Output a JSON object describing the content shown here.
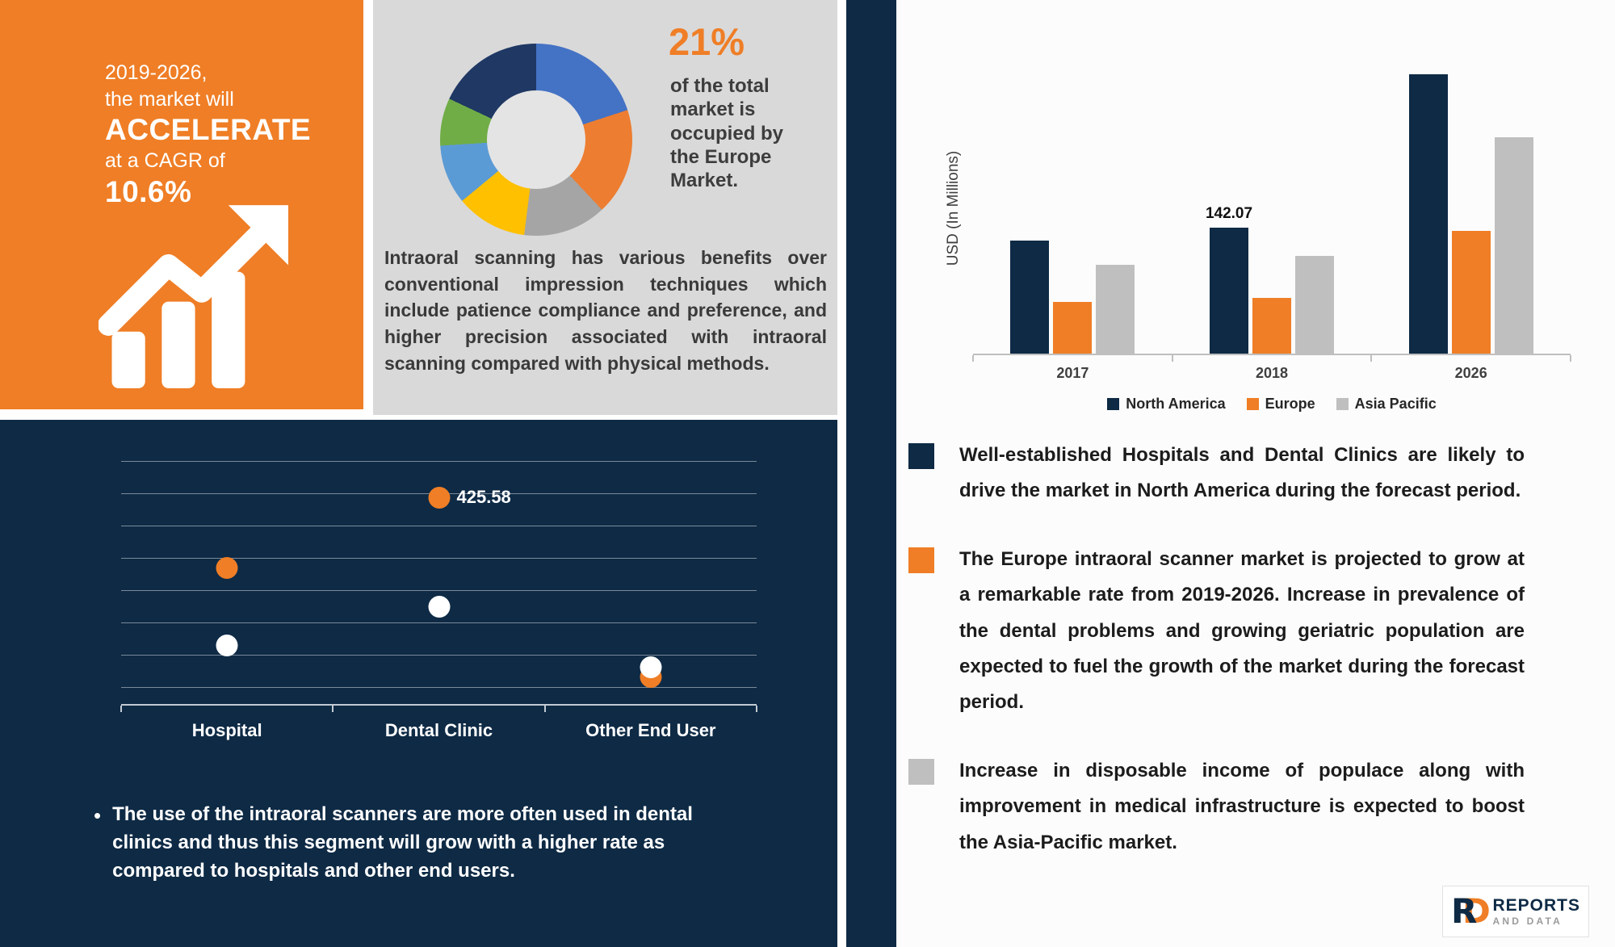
{
  "colors": {
    "orange": "#EF7E26",
    "navy": "#0E2A45",
    "panel_gray": "#D9D9D9",
    "bar_gray": "#BFBFBF"
  },
  "cagr_panel": {
    "line1": "2019-2026,",
    "line2": "the market will",
    "accelerate": "ACCELERATE",
    "line4": "at a CAGR of",
    "value": "10.6%"
  },
  "europe_stat": {
    "value": "21%",
    "caption": "of the total market is occupied by the Europe Market."
  },
  "intro_paragraph": "Intraoral scanning has various benefits over conventional impression techniques which include patience compliance and preference, and higher precision associated with intraoral scanning compared with physical methods.",
  "left_bullet_marker": "•",
  "left_bullet": "The use of the intraoral scanners are more often used in dental clinics and thus this segment will grow with a higher rate as compared to hospitals and other end users.",
  "right_bullets": [
    {
      "marker_color": "#0E2A45",
      "text": "Well-established Hospitals and Dental Clinics are likely to drive the market in North America  during the forecast period."
    },
    {
      "marker_color": "#EF7E26",
      "text": "The Europe intraoral scanner market is projected to grow at a remarkable rate from 2019-2026. Increase in prevalence of the dental problems and growing geriatric population are expected to fuel the growth of the market during the forecast period."
    },
    {
      "marker_color": "#BFBFBF",
      "text": "Increase in disposable income of populace along with improvement in medical infrastructure is expected to boost the Asia-Pacific market."
    }
  ],
  "logo": {
    "mark_r": "R",
    "mark_d": "D",
    "brand_top": "REPORTS",
    "brand_bottom": "AND DATA"
  },
  "chart_data": [
    {
      "type": "pie",
      "donut": true,
      "legend_position": "none",
      "segments": [
        {
          "label": "segment-blue",
          "color": "#4472C4",
          "value": 20
        },
        {
          "label": "segment-orange",
          "color": "#ED7D31",
          "value": 18
        },
        {
          "label": "segment-gray",
          "color": "#A5A5A5",
          "value": 14
        },
        {
          "label": "segment-yellow",
          "color": "#FFC000",
          "value": 12
        },
        {
          "label": "segment-lightblue",
          "color": "#5B9BD5",
          "value": 10
        },
        {
          "label": "segment-green",
          "color": "#70AD47",
          "value": 8
        },
        {
          "label": "segment-navy",
          "color": "#1F3864",
          "value": 18
        }
      ]
    },
    {
      "type": "scatter",
      "categories": [
        "Hospital",
        "Dental Clinic",
        "Other End User"
      ],
      "series": [
        {
          "name": "orange",
          "color": "#EF7E26",
          "values": [
            280,
            425.58,
            55
          ]
        },
        {
          "name": "white",
          "color": "#FFFFFF",
          "values": [
            120,
            200,
            75
          ]
        }
      ],
      "ylim": [
        0,
        500
      ],
      "gridlines": 8,
      "grid": true,
      "legend_position": "none",
      "data_label": {
        "series_index": 0,
        "category_index": 1,
        "text": "425.58",
        "value": 425.58
      }
    },
    {
      "type": "bar",
      "categories": [
        "2017",
        "2018",
        "2026"
      ],
      "series": [
        {
          "name": "North America",
          "color": "#0E2A45",
          "values": [
            127,
            142.07,
            315
          ]
        },
        {
          "name": "Europe",
          "color": "#EF7E26",
          "values": [
            58,
            63,
            138
          ]
        },
        {
          "name": "Asia Pacific",
          "color": "#BFBFBF",
          "values": [
            100,
            110,
            244
          ]
        }
      ],
      "xlabel": "",
      "ylabel": "USD (In Millions)",
      "ylim": [
        0,
        330
      ],
      "grid": false,
      "legend_position": "bottom",
      "data_label": {
        "series_index": 0,
        "category_index": 1,
        "text": "142.07",
        "value": 142.07
      }
    }
  ]
}
